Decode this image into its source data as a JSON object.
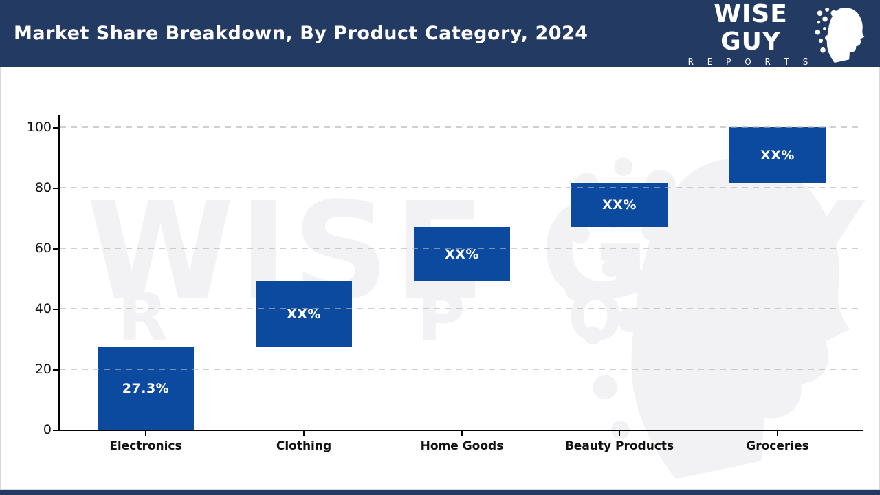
{
  "header": {
    "title": "Market Share Breakdown, By Product Category, 2024",
    "logo": {
      "line1": "WISE GUY",
      "line2": "R E P O R T S"
    }
  },
  "watermark": {
    "line1": "WISE GUY",
    "line2": "R E P O R T S"
  },
  "chart_data": {
    "type": "bar",
    "subtype": "waterfall",
    "title": "Market Share Breakdown, By Product Category, 2024",
    "categories": [
      "Electronics",
      "Clothing",
      "Home Goods",
      "Beauty Products",
      "Groceries"
    ],
    "segments": [
      {
        "category": "Electronics",
        "start": 0,
        "end": 27.3,
        "label": "27.3%"
      },
      {
        "category": "Clothing",
        "start": 27.3,
        "end": 49.0,
        "label": "XX%"
      },
      {
        "category": "Home Goods",
        "start": 49.0,
        "end": 67.0,
        "label": "XX%"
      },
      {
        "category": "Beauty Products",
        "start": 67.0,
        "end": 81.5,
        "label": "XX%"
      },
      {
        "category": "Groceries",
        "start": 81.5,
        "end": 100,
        "label": "XX%"
      }
    ],
    "xlabel": "",
    "ylabel": "",
    "yticks": [
      0,
      20,
      40,
      60,
      80,
      100
    ],
    "ylim": [
      0,
      105
    ],
    "grid": "horizontal dashed, drawn over bars",
    "legend": "none",
    "bar_color": "#0c4aa0"
  },
  "colors": {
    "header_bg": "#233a63",
    "footer_bg": "#233a63",
    "bar": "#0c4aa0",
    "bar_label": "#ffffff",
    "axis": "#000000",
    "tick_text": "#111111",
    "gridline": "#b6b6b6",
    "watermark": "#f2f2f4",
    "frame_border": "#d9d9d9"
  }
}
